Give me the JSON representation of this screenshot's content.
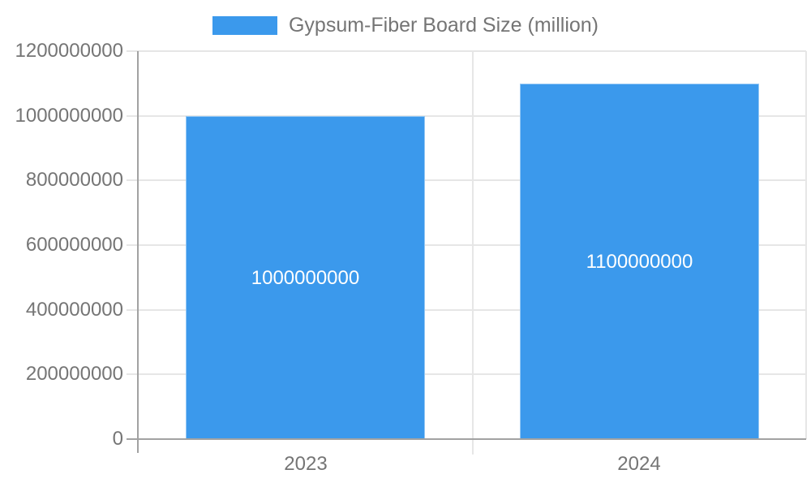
{
  "legend": {
    "label": "Gypsum-Fiber Board Size (million)"
  },
  "chart_data": {
    "type": "bar",
    "title": "",
    "xlabel": "",
    "ylabel": "",
    "categories": [
      "2023",
      "2024"
    ],
    "series": [
      {
        "name": "Gypsum-Fiber Board Size (million)",
        "values": [
          1000000000,
          1100000000
        ]
      }
    ],
    "bar_value_labels": [
      "1000000000",
      "1100000000"
    ],
    "ylim": [
      0,
      1200000000
    ],
    "ytick_step": 200000000,
    "yticks": [
      0,
      200000000,
      400000000,
      600000000,
      800000000,
      1000000000,
      1200000000
    ],
    "ytick_labels": [
      "0",
      "200000000",
      "400000000",
      "600000000",
      "800000000",
      "1000000000",
      "1200000000"
    ],
    "grid": true,
    "legend_position": "top-center",
    "colors": {
      "bar": "#3b99ec",
      "grid": "#e6e6e6",
      "axis": "#a2a2a2",
      "tick_text": "#757575",
      "legend_text": "#757575",
      "bar_label_text": "#ffffff",
      "background": "#ffffff"
    }
  }
}
